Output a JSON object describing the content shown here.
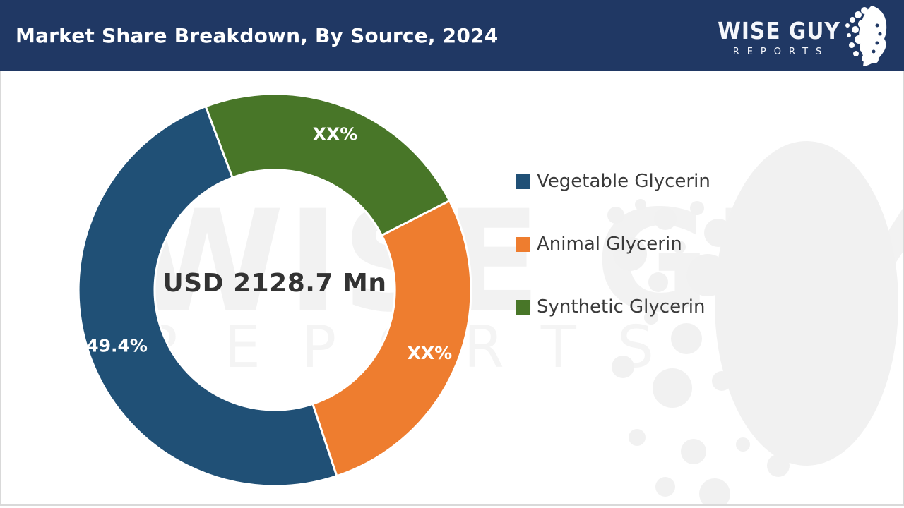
{
  "header": {
    "title": "Market Share Breakdown, By Source, 2024",
    "logo": {
      "line1": "WISE GUY",
      "line2": "REPORTS"
    }
  },
  "watermark": {
    "line1": "WISE GUY",
    "line2": "REPORTS"
  },
  "chart_data": {
    "type": "pie",
    "subtype": "donut",
    "title": "Market Share Breakdown, By Source, 2024",
    "center_label": "USD 2128.7 Mn",
    "start_angle_deg": 110.6,
    "direction": "counterclockwise",
    "inner_radius_ratio": 0.612,
    "legend_position": "right",
    "segments": [
      {
        "name": "Vegetable Glycerin",
        "value_pct": 49.4,
        "slice_label": "49.4%",
        "color": "#205076"
      },
      {
        "name": "Animal Glycerin",
        "value_pct": 27.4,
        "slice_label": "XX%",
        "color": "#EE7D2F"
      },
      {
        "name": "Synthetic Glycerin",
        "value_pct": 23.2,
        "slice_label": "XX%",
        "color": "#487628"
      }
    ]
  },
  "colors": {
    "header_bg": "#203864",
    "card_border": "#d9d9d9",
    "center_text": "#333333",
    "legend_text": "#3a3a3a",
    "watermark": "#f2f2f2",
    "slice_divider": "#ffffff"
  }
}
